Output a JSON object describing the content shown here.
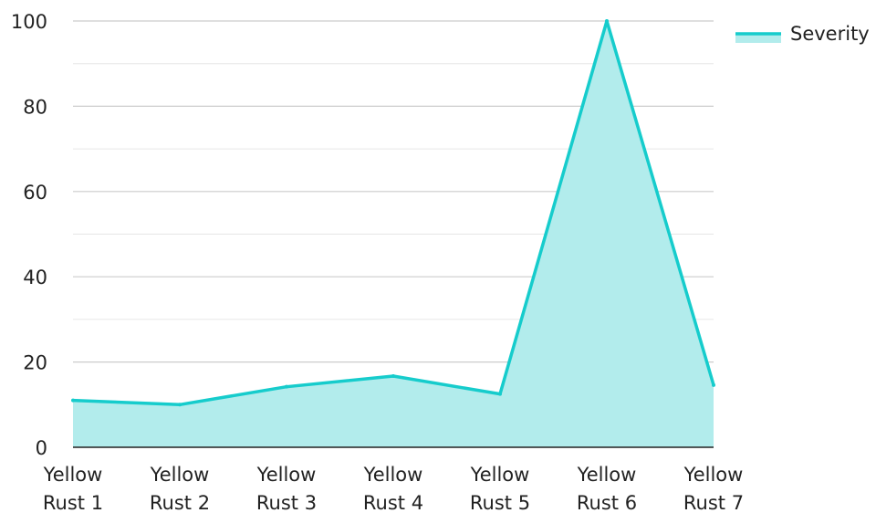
{
  "chart_data": {
    "type": "area",
    "title": "",
    "xlabel": "",
    "ylabel": "",
    "categories": [
      "Yellow Rust 1",
      "Yellow Rust 2",
      "Yellow Rust 3",
      "Yellow Rust 4",
      "Yellow Rust 5",
      "Yellow Rust 6",
      "Yellow Rust 7"
    ],
    "category_lines": [
      [
        "Yellow",
        "Rust 1"
      ],
      [
        "Yellow",
        "Rust 2"
      ],
      [
        "Yellow",
        "Rust 3"
      ],
      [
        "Yellow",
        "Rust 4"
      ],
      [
        "Yellow",
        "Rust 5"
      ],
      [
        "Yellow",
        "Rust 6"
      ],
      [
        "Yellow",
        "Rust 7"
      ]
    ],
    "series": [
      {
        "name": "Severity",
        "values": [
          11,
          10,
          14.2,
          16.7,
          12.5,
          100,
          14.6
        ]
      }
    ],
    "ylim": [
      0,
      100
    ],
    "yticks": [
      0,
      20,
      40,
      60,
      80,
      100
    ],
    "grid": true,
    "legend_position": "top-right",
    "colors": {
      "line": "#16CCCC",
      "fill": "#B2ECEC",
      "grid": "#CCCCCC",
      "axis": "#222222",
      "text": "#222222"
    }
  }
}
